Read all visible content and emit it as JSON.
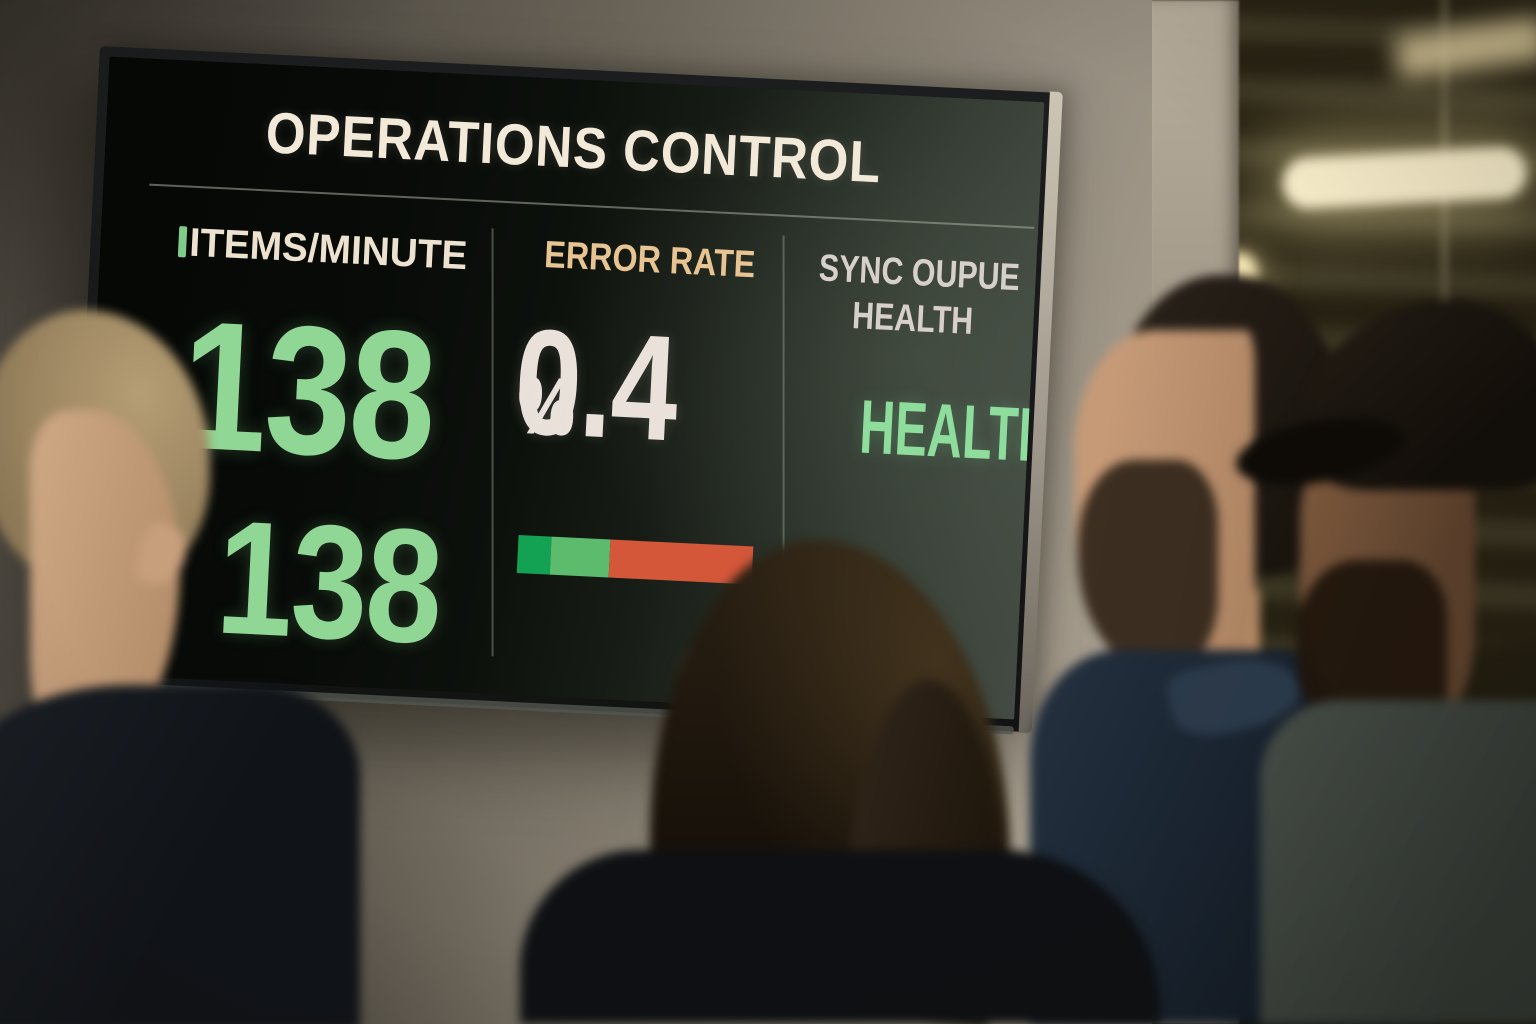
{
  "screen": {
    "title": "OPERATIONS CONTROL",
    "metrics": {
      "items_per_minute": {
        "label": "ITEMS/MINUTE",
        "primary_value": "138",
        "secondary_value": "138"
      },
      "error_rate": {
        "label": "ERROR RATE",
        "value": "0.4",
        "unit": "%",
        "bar_segments": [
          {
            "color": "#13a154",
            "percent": 14
          },
          {
            "color": "#5dbb6e",
            "percent": 25
          },
          {
            "color": "#d4573a",
            "percent": 61
          }
        ]
      },
      "sync_queue_health": {
        "label_line1": "SYNC OUPUE",
        "label_line2": "HEALTH",
        "status": "HEALTHY",
        "status_color": "#8edd9d"
      }
    },
    "colors": {
      "title_cream": "#f2e9d9",
      "label_cream": "#ece2cf",
      "label_gold": "#e8c493",
      "label_gray": "#d7cfca",
      "value_green": "#90d795",
      "value_white": "#e9e1da",
      "items_tick_green": "#7fcc8a"
    }
  }
}
